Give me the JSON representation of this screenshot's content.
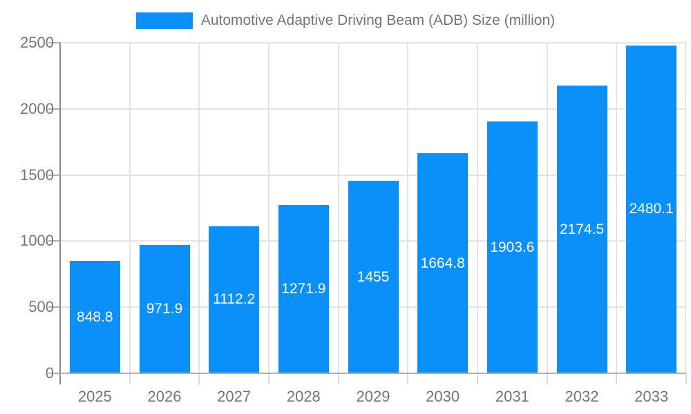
{
  "chart_data": {
    "type": "bar",
    "title": "Automotive Adaptive Driving Beam (ADB) Size (million)",
    "legend": {
      "position": "top",
      "entries": [
        {
          "label": "Automotive Adaptive Driving Beam (ADB) Size (million)",
          "color": "#0a90f8"
        }
      ]
    },
    "categories": [
      "2025",
      "2026",
      "2027",
      "2028",
      "2029",
      "2030",
      "2031",
      "2032",
      "2033"
    ],
    "series": [
      {
        "name": "Automotive Adaptive Driving Beam (ADB) Size (million)",
        "values": [
          848.8,
          971.9,
          1112.2,
          1271.9,
          1455,
          1664.8,
          1903.6,
          2174.5,
          2480.1
        ]
      }
    ],
    "value_labels": [
      "848.8",
      "971.9",
      "1112.2",
      "1271.9",
      "1455",
      "1664.8",
      "1903.6",
      "2174.5",
      "2480.1"
    ],
    "xlabel": "",
    "ylabel": "",
    "ylim": [
      0,
      2500
    ],
    "yticks": [
      0,
      500,
      1000,
      1500,
      2000,
      2500
    ],
    "ytick_labels": [
      "0",
      "500",
      "1000",
      "1500",
      "2000",
      "2500"
    ],
    "grid": true,
    "colors": {
      "bar": "#0a90f8",
      "value_label_text": "#ffffff",
      "axis_text": "#757575",
      "legend_text": "#757575",
      "gridline": "#e3e3e3",
      "baseline": "#b0b0b0",
      "y_axis_line": "#8a8a8a",
      "tick_light": "#d9d9d9",
      "tick_dark": "#b0b0b0",
      "background": "#ffffff"
    }
  }
}
